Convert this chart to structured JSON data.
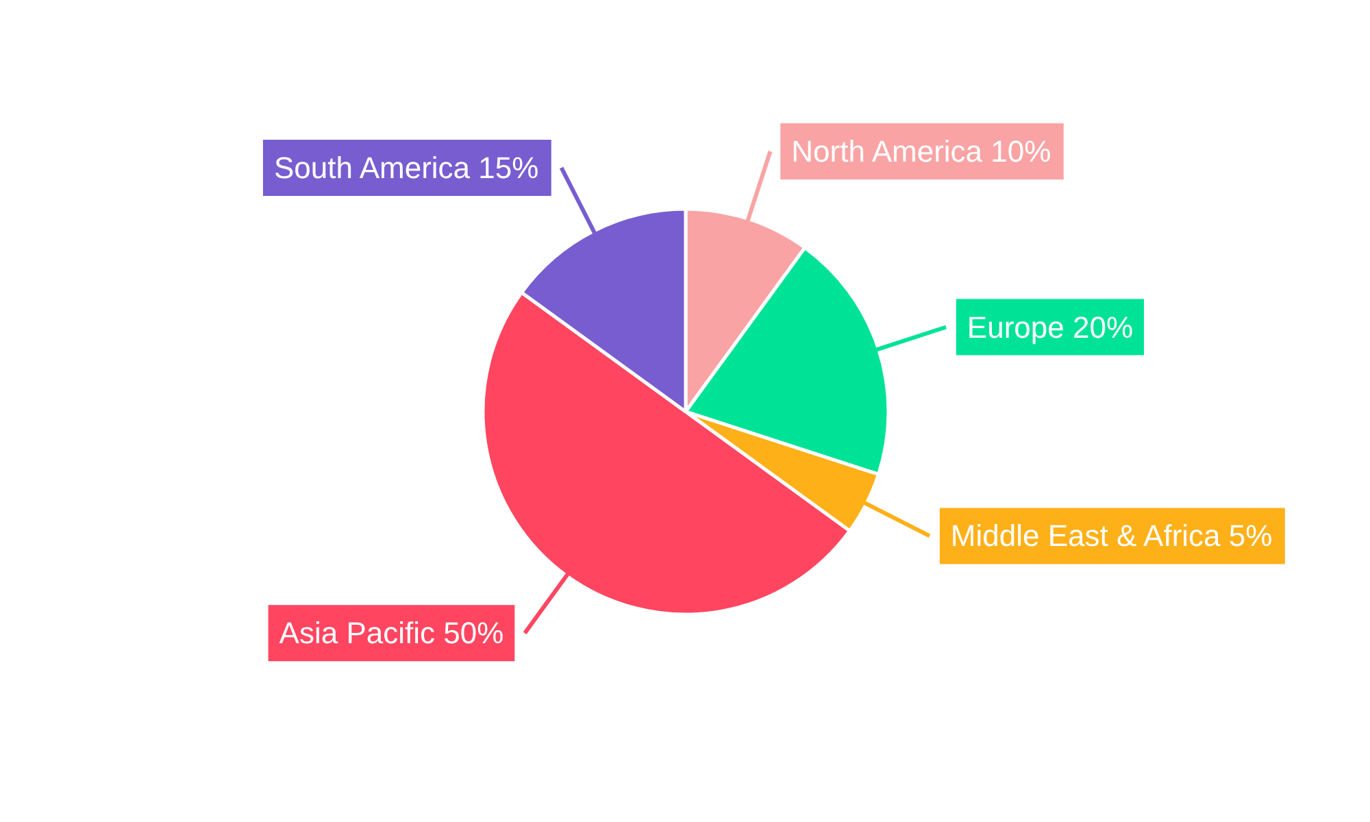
{
  "chart_data": {
    "type": "pie",
    "categories": [
      "North America",
      "Europe",
      "Middle East & Africa",
      "Asia Pacific",
      "South America"
    ],
    "values": [
      10,
      20,
      5,
      50,
      15
    ],
    "colors": [
      "#f9a3a4",
      "#00e396",
      "#feb019",
      "#ff4560",
      "#775dd0"
    ],
    "value_labels": [
      "10%",
      "20%",
      "5%",
      "50%",
      "15%"
    ]
  }
}
